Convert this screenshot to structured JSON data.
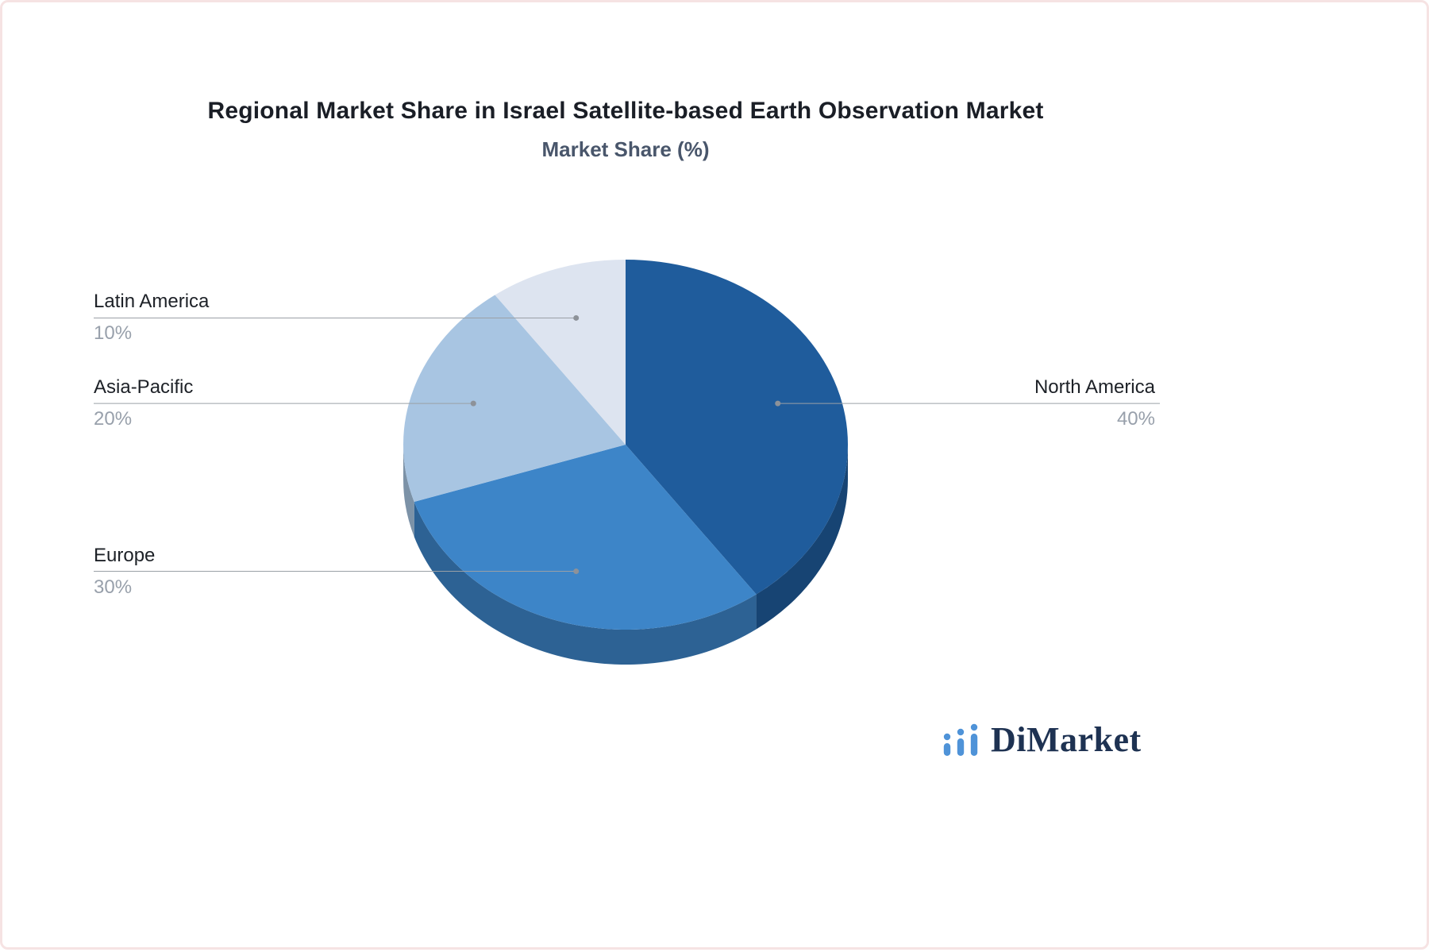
{
  "header": {
    "title": "Regional Market Share in Israel Satellite-based Earth Observation Market",
    "subtitle": "Market Share (%)"
  },
  "chart_data": {
    "type": "pie",
    "title": "Regional Market Share in Israel Satellite-based Earth Observation Market",
    "subtitle": "Market Share (%)",
    "unit": "%",
    "style": "3d",
    "start_angle_deg": 0,
    "direction": "clockwise",
    "legend_position": "none",
    "label_style": "leader-lines",
    "slices": [
      {
        "label": "North America",
        "value": 40,
        "display": "40%",
        "color": "#1f5c9c"
      },
      {
        "label": "Europe",
        "value": 30,
        "display": "30%",
        "color": "#3d85c8"
      },
      {
        "label": "Asia-Pacific",
        "value": 20,
        "display": "20%",
        "color": "#a8c5e2"
      },
      {
        "label": "Latin America",
        "value": 10,
        "display": "10%",
        "color": "#dde4f0"
      }
    ]
  },
  "branding": {
    "logo_text": "DiMarket",
    "logo_icon": "bar-chart-icon",
    "logo_text_color": "#1e3252",
    "logo_icon_color": "#4f93d8"
  }
}
